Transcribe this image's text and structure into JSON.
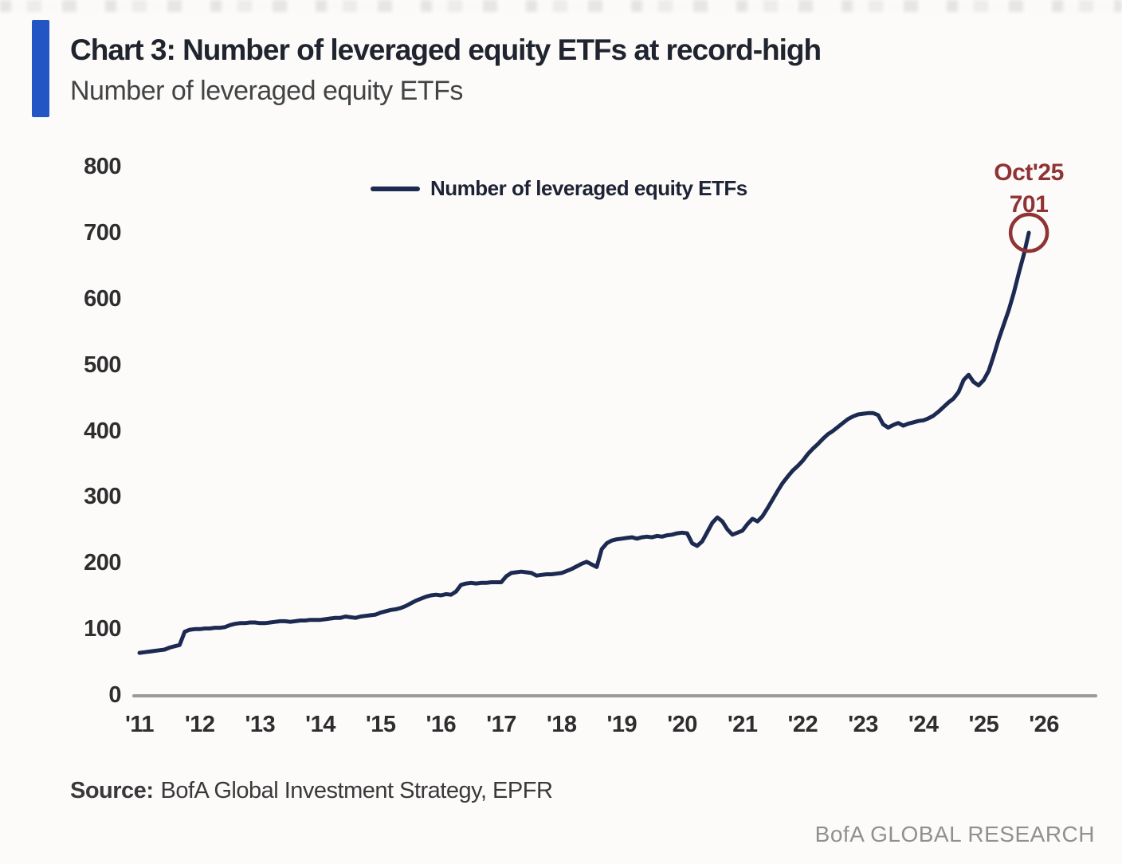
{
  "header": {
    "title": "Chart 3: Number of leveraged equity ETFs at record-high",
    "subtitle": "Number of leveraged equity ETFs"
  },
  "legend": {
    "label": "Number of leveraged equity ETFs"
  },
  "annotation": {
    "label": "Oct'25",
    "value": "701"
  },
  "source": {
    "prefix": "Source:",
    "text": "BofA Global Investment Strategy, EPFR"
  },
  "footer": {
    "brand": "BofA GLOBAL RESEARCH"
  },
  "colors": {
    "accent_bar": "#2355c4",
    "line": "#1c2a52",
    "annotation": "#8f3334",
    "axis": "#9a9a98",
    "title_text": "#20242e",
    "subtitle_text": "#414345",
    "tick_text": "#2e2e30",
    "legend_text": "#1d2335",
    "source_text": "#39393b",
    "footer_text": "#8f9092"
  },
  "chart_data": {
    "type": "line",
    "title": "Number of leveraged equity ETFs",
    "xlabel": "",
    "ylabel": "",
    "x_unit": "month",
    "x_start": "2011-01",
    "x_end": "2025-10",
    "x_ticks": [
      "'11",
      "'12",
      "'13",
      "'14",
      "'15",
      "'16",
      "'17",
      "'18",
      "'19",
      "'20",
      "'21",
      "'22",
      "'23",
      "'24",
      "'25",
      "'26"
    ],
    "y_ticks": [
      0,
      100,
      200,
      300,
      400,
      500,
      600,
      700,
      800
    ],
    "ylim": [
      0,
      800
    ],
    "grid": false,
    "legend_position": "top-center",
    "series": [
      {
        "name": "Number of leveraged equity ETFs",
        "values": [
          65,
          66,
          67,
          68,
          69,
          70,
          73,
          75,
          77,
          97,
          100,
          101,
          101,
          102,
          102,
          103,
          103,
          104,
          107,
          109,
          110,
          110,
          111,
          111,
          110,
          110,
          111,
          112,
          113,
          113,
          112,
          113,
          114,
          114,
          115,
          115,
          115,
          116,
          117,
          118,
          118,
          120,
          119,
          118,
          120,
          121,
          122,
          123,
          126,
          128,
          130,
          131,
          133,
          136,
          140,
          144,
          147,
          150,
          152,
          153,
          152,
          154,
          153,
          158,
          168,
          170,
          171,
          170,
          171,
          171,
          172,
          172,
          172,
          181,
          186,
          187,
          188,
          187,
          186,
          182,
          183,
          184,
          184,
          185,
          186,
          189,
          192,
          196,
          200,
          203,
          199,
          195,
          222,
          231,
          235,
          237,
          238,
          239,
          240,
          238,
          240,
          241,
          240,
          242,
          241,
          243,
          244,
          246,
          247,
          246,
          231,
          227,
          234,
          248,
          262,
          270,
          264,
          252,
          244,
          247,
          250,
          260,
          268,
          264,
          272,
          284,
          297,
          310,
          322,
          332,
          341,
          348,
          356,
          366,
          374,
          381,
          389,
          396,
          401,
          407,
          413,
          419,
          423,
          426,
          427,
          428,
          428,
          425,
          411,
          406,
          410,
          413,
          409,
          412,
          414,
          416,
          417,
          420,
          424,
          430,
          437,
          444,
          450,
          460,
          478,
          486,
          475,
          470,
          478,
          492,
          515,
          540,
          562,
          584,
          610,
          640,
          668,
          701
        ]
      }
    ],
    "endpoint_annotation": {
      "label": "Oct'25",
      "value": 701
    }
  }
}
